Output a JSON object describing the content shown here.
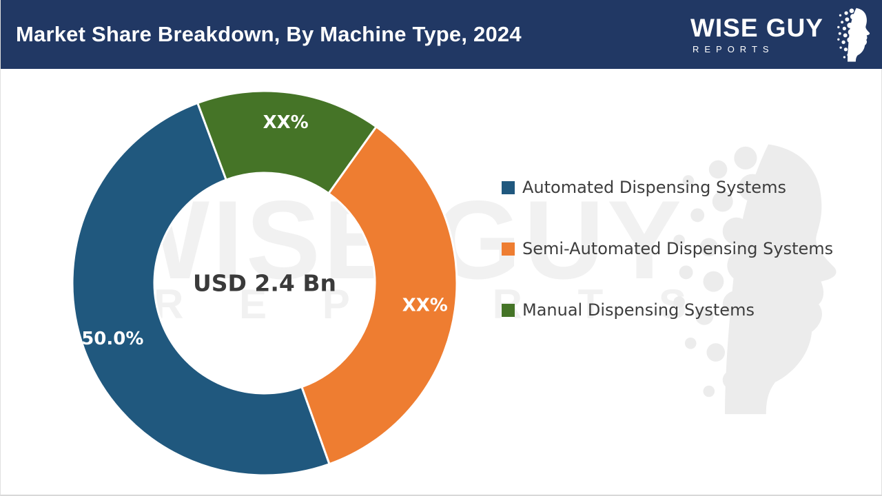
{
  "header": {
    "title": "Market Share Breakdown, By Machine Type, 2024",
    "brand": {
      "wordmark": "WISE GUY",
      "sub": "REPORTS"
    }
  },
  "watermark": {
    "line1": "WISE GUY",
    "line2": "R E P O R T S"
  },
  "chart_data": {
    "type": "pie",
    "subtype": "donut",
    "title": "Market Share Breakdown, By Machine Type, 2024",
    "year": "2024",
    "center_label": "USD 2.4 Bn",
    "hole_ratio": 0.58,
    "legend_position": "right",
    "grid": false,
    "segments": [
      {
        "name": "Automated Dispensing Systems",
        "display_label": "50.0%",
        "share_pct": 50.0,
        "color": "#20587e",
        "start_angle": 160.3,
        "end_angle": 339.6,
        "label_angle": 249.9
      },
      {
        "name": "Semi-Automated Dispensing Systems",
        "display_label": "XX%",
        "share_pct": 34.7,
        "color": "#ee7d31",
        "start_angle": 35.5,
        "end_angle": 160.3,
        "label_angle": 97.9
      },
      {
        "name": "Manual Dispensing Systems",
        "display_label": "XX%",
        "share_pct": 15.3,
        "color": "#457427",
        "start_angle": -20.4,
        "end_angle": 35.5,
        "label_angle": 7.5
      }
    ]
  },
  "colors": {
    "header_bg": "#213864",
    "watermark": "#f1f1f1",
    "center_text": "#3a3a3a",
    "legend_text": "#3d3d3d"
  }
}
